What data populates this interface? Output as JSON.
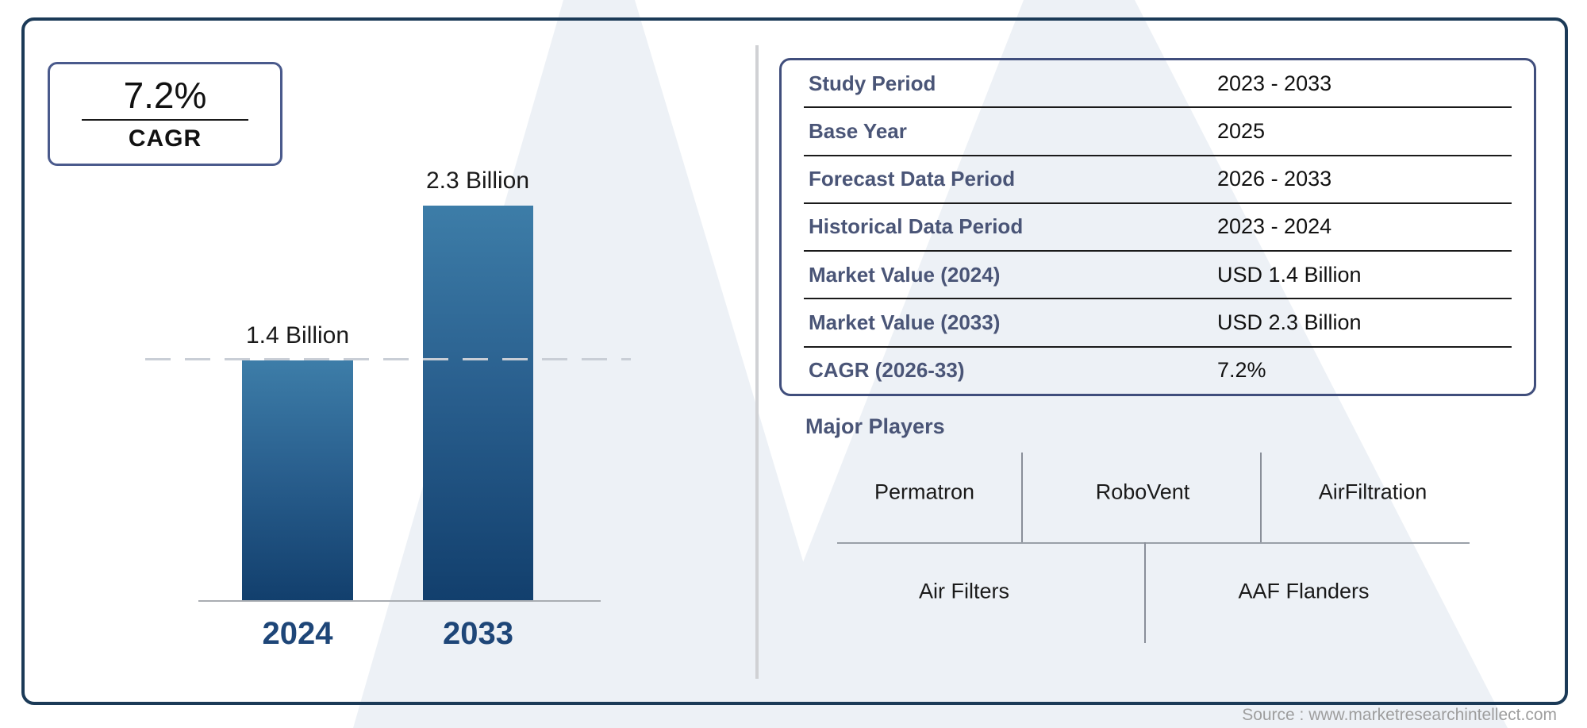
{
  "cagr_box": {
    "value": "7.2%",
    "label": "CAGR"
  },
  "chart_data": {
    "type": "bar",
    "categories": [
      "2024",
      "2033"
    ],
    "values": [
      1.4,
      2.3
    ],
    "unit": "USD Billion",
    "bar_labels": [
      "1.4 Billion",
      "2.3 Billion"
    ],
    "title": "",
    "xlabel": "",
    "ylabel": "",
    "ylim": [
      0,
      2.5
    ],
    "reference_line_at": 1.4,
    "grid": "off",
    "legend": "none",
    "bar_color_top": "#3d7da8",
    "bar_color_bottom": "#123f6d"
  },
  "info_table": {
    "rows": [
      {
        "label": "Study Period",
        "value": "2023 - 2033"
      },
      {
        "label": "Base Year",
        "value": "2025"
      },
      {
        "label": "Forecast Data Period",
        "value": "2026 - 2033"
      },
      {
        "label": "Historical Data Period",
        "value": "2023 - 2024"
      },
      {
        "label": "Market Value (2024)",
        "value": "USD 1.4 Billion"
      },
      {
        "label": "Market Value (2033)",
        "value": "USD 2.3 Billion"
      },
      {
        "label": "CAGR (2026-33)",
        "value": "7.2%"
      }
    ]
  },
  "major_players": {
    "heading": "Major Players",
    "row1": [
      "Permatron",
      "RoboVent",
      "AirFiltration"
    ],
    "row2": [
      "Air Filters",
      "AAF Flanders"
    ]
  },
  "footer": {
    "source": "Source : www.marketresearchintellect.com"
  },
  "colors": {
    "frame_border": "#1b3a57",
    "table_border": "#404e7c",
    "label_blue": "#4a5577",
    "year_label_navy": "#1e4678",
    "watermark": "#edf1f6"
  }
}
